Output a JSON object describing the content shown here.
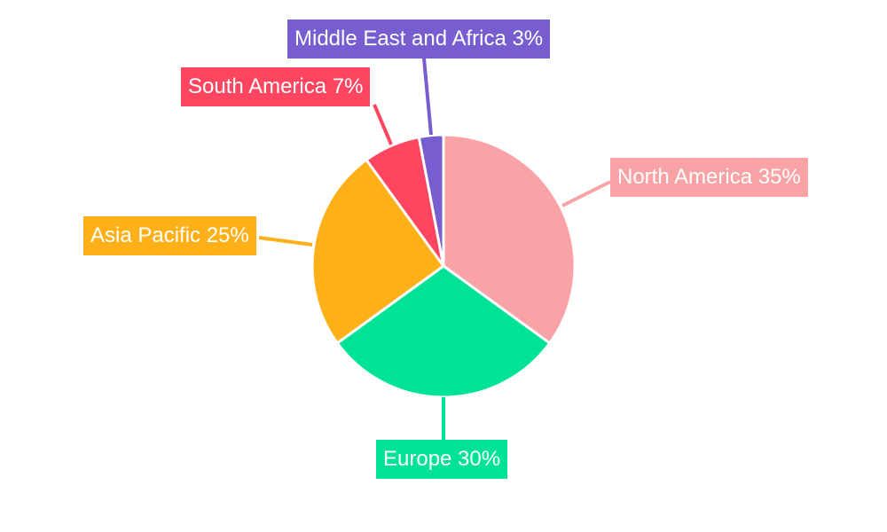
{
  "chart_data": {
    "type": "pie",
    "title": "",
    "categories": [
      "North America",
      "Europe",
      "Asia Pacific",
      "South America",
      "Middle East and Africa"
    ],
    "values": [
      35,
      30,
      25,
      7,
      3
    ],
    "labels": [
      "North America 35%",
      "Europe 30%",
      "Asia Pacific 25%",
      "South America 7%",
      "Middle East and Africa 3%"
    ],
    "colors": [
      "#F9A3A6",
      "#00E396",
      "#FEB019",
      "#FF4560",
      "#775DD0"
    ],
    "start_angle": "12 o'clock",
    "direction": "clockwise",
    "legend": "none"
  }
}
